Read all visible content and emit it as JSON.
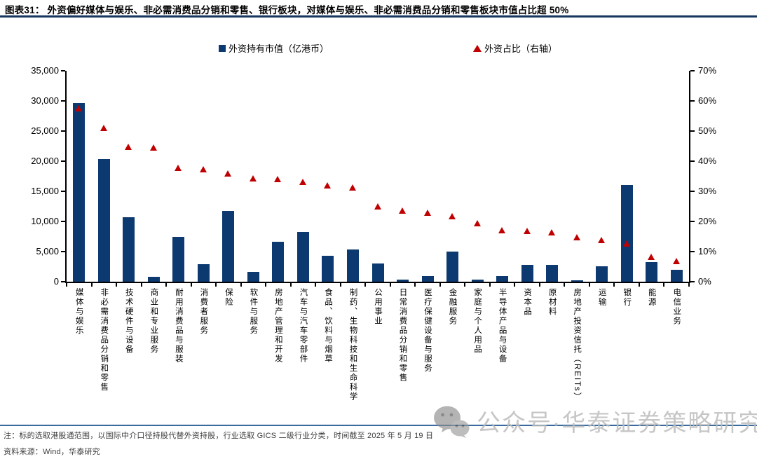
{
  "title": "图表31：  外资偏好媒体与娱乐、非必需消费品分销和零售、银行板块，对媒体与娱乐、非必需消费品分销和零售板块市值占比超 50%",
  "legend": {
    "bars_label": "外资持有市值（亿港币）",
    "marker_label": "外资占比（右轴）"
  },
  "colors": {
    "bar": "#0c3a70",
    "marker": "#c00000",
    "title_rule": "#17365d",
    "footer_rule": "#3a6b9f",
    "axis": "#000000",
    "note": "#3c3c3c",
    "watermark": "#bdbdbd"
  },
  "axes": {
    "left_ticks": [
      "35,000",
      "30,000",
      "25,000",
      "20,000",
      "15,000",
      "10,000",
      "5,000",
      "0"
    ],
    "right_ticks": [
      "70%",
      "60%",
      "50%",
      "40%",
      "30%",
      "20%",
      "10%",
      "0%"
    ]
  },
  "chart_data": {
    "type": "bar",
    "title": "外资偏好媒体与娱乐、非必需消费品分销和零售、银行板块，对媒体与娱乐、非必需消费品分销和零售板块市值占比超50%",
    "categories": [
      "媒体与娱乐",
      "非必需消费品分销和零售",
      "技术硬件与设备",
      "商业和专业服务",
      "耐用消费品与服装",
      "消费者服务",
      "保险",
      "软件与服务",
      "房地产管理和开发",
      "汽车与汽车零部件",
      "食品、饮料与烟草",
      "制药、生物科技和生命科学",
      "公用事业",
      "日常消费品分销和零售",
      "医疗保健设备与服务",
      "金融服务",
      "家庭与个人用品",
      "半导体产品与设备",
      "资本品",
      "原材料",
      "房地产投资信托（REITs）",
      "运输",
      "银行",
      "能源",
      "电信业务"
    ],
    "series": [
      {
        "name": "外资持有市值（亿港币）",
        "type": "bar",
        "axis": "left",
        "values": [
          29700,
          20300,
          10700,
          800,
          7400,
          2900,
          11700,
          1600,
          6600,
          8200,
          4300,
          5300,
          3000,
          400,
          900,
          5000,
          350,
          900,
          2800,
          2800,
          200,
          2600,
          16100,
          3200,
          1950
        ]
      },
      {
        "name": "外资占比（右轴）",
        "type": "scatter",
        "marker": "triangle",
        "axis": "right",
        "values": [
          57.4,
          51.0,
          44.7,
          44.5,
          37.7,
          37.2,
          35.8,
          34.2,
          34.0,
          33.0,
          31.9,
          31.2,
          24.9,
          23.5,
          22.8,
          21.6,
          19.3,
          17.0,
          16.7,
          16.3,
          14.7,
          13.7,
          12.6,
          8.1,
          6.7
        ]
      }
    ],
    "left_axis": {
      "min": 0,
      "max": 35000,
      "step": 5000
    },
    "right_axis": {
      "min": 0,
      "max": 70,
      "step": 10,
      "unit": "%"
    },
    "legend_position": "top",
    "grid": false
  },
  "notes": [
    "注：标的选取港股通范围，以国际中介口径持股代替外资持股，行业选取 GICS 二级行业分类，时间截至 2025 年 5 月 19 日",
    "资料来源：Wind，华泰研究"
  ],
  "watermark": "公众号·华泰证券策略研究"
}
